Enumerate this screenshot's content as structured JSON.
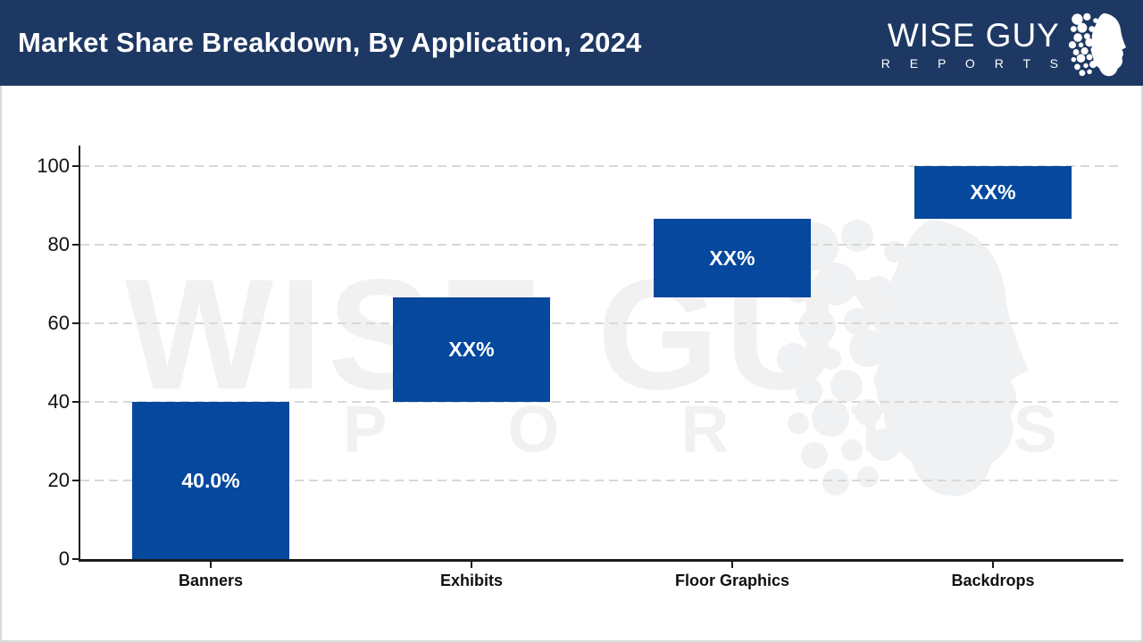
{
  "header": {
    "title": "Market Share Breakdown, By Application, 2024",
    "bg_color": "#1e3864",
    "logo": {
      "brand_line1": "WISE GUY",
      "brand_line2": "R E P O R T S"
    }
  },
  "watermark": {
    "text_large": "WISE GUY",
    "text_small": "P O R T S",
    "color": "#f1f1f1"
  },
  "chart_data": {
    "type": "bar",
    "variant": "waterfall",
    "title": "Market Share Breakdown, By Application, 2024",
    "categories": [
      "Banners",
      "Exhibits",
      "Floor Graphics",
      "Backdrops"
    ],
    "segments": [
      {
        "category": "Banners",
        "start": 0,
        "end": 40,
        "label": "40.0%"
      },
      {
        "category": "Exhibits",
        "start": 40,
        "end": 66.5,
        "label": "XX%"
      },
      {
        "category": "Floor Graphics",
        "start": 66.5,
        "end": 86.5,
        "label": "XX%"
      },
      {
        "category": "Backdrops",
        "start": 86.5,
        "end": 100,
        "label": "XX%"
      }
    ],
    "yticks": [
      0,
      20,
      40,
      60,
      80,
      100
    ],
    "ylim": [
      0,
      105
    ],
    "xlabel": "",
    "ylabel": "",
    "grid": true,
    "grid_style": "dashed",
    "legend": "none",
    "bar_color": "#05489d",
    "bar_label_color": "#ffffff",
    "axis_color": "#1c1c1c",
    "grid_color": "#d8d8d8"
  }
}
